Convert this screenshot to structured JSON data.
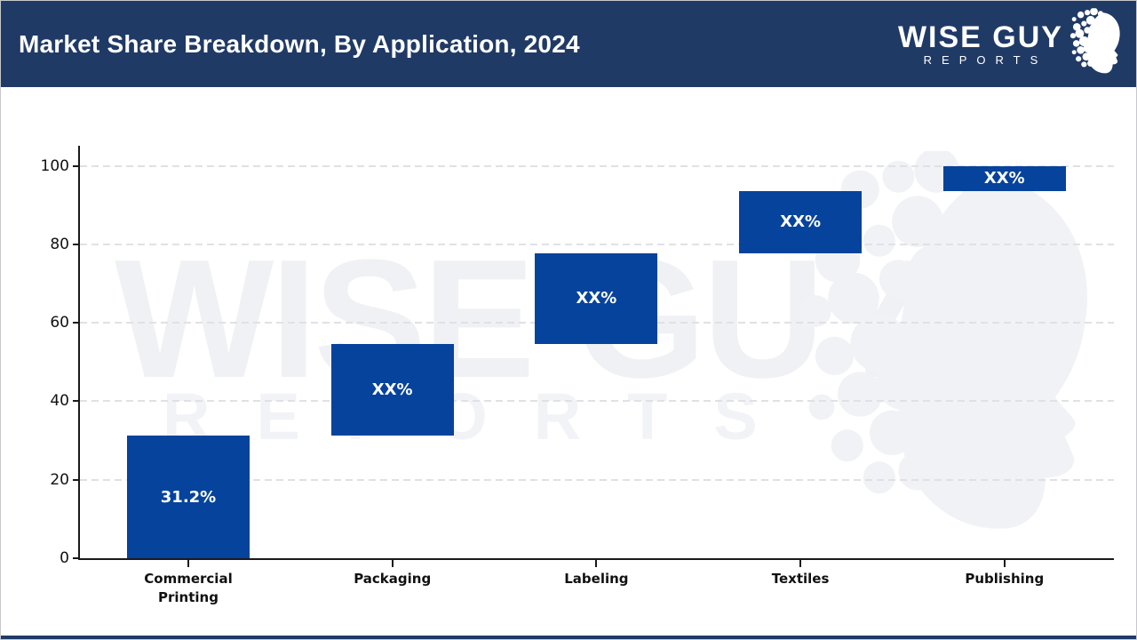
{
  "header": {
    "title": "Market Share Breakdown, By Application, 2024",
    "logo": {
      "line1": "WISE GUY",
      "line2": "REPORTS"
    }
  },
  "watermark": {
    "line1": "WISE GUY",
    "line2": "REPORTS"
  },
  "colors": {
    "header_bg": "#203a66",
    "bar": "#06439c",
    "axis": "#1a1a1a",
    "gridline": "#e1e1e5",
    "bar_label": "#ffffff",
    "watermark": "#f0f1f4"
  },
  "chart_data": {
    "type": "bar",
    "subtype": "waterfall",
    "title": "Market Share Breakdown, By Application, 2024",
    "categories": [
      "Commercial\nPrinting",
      "Packaging",
      "Labeling",
      "Textiles",
      "Publishing"
    ],
    "segments": [
      {
        "category": "Commercial Printing",
        "start": 0,
        "end": 31.2,
        "value": 31.2,
        "display_label": "31.2%"
      },
      {
        "category": "Packaging",
        "start": 31.2,
        "end": 54.6,
        "value": 23.4,
        "display_label": "XX%"
      },
      {
        "category": "Labeling",
        "start": 54.6,
        "end": 77.7,
        "value": 23.1,
        "display_label": "XX%"
      },
      {
        "category": "Textiles",
        "start": 77.7,
        "end": 93.6,
        "value": 15.9,
        "display_label": "XX%"
      },
      {
        "category": "Publishing",
        "start": 93.6,
        "end": 100.0,
        "value": 6.4,
        "display_label": "XX%"
      }
    ],
    "xlabel": "",
    "ylabel": "",
    "yticks": [
      0,
      20,
      40,
      60,
      80,
      100
    ],
    "ylim": [
      0,
      105
    ],
    "grid": "horizontal-dashed",
    "legend": "none",
    "bar_color": "#06439c"
  }
}
